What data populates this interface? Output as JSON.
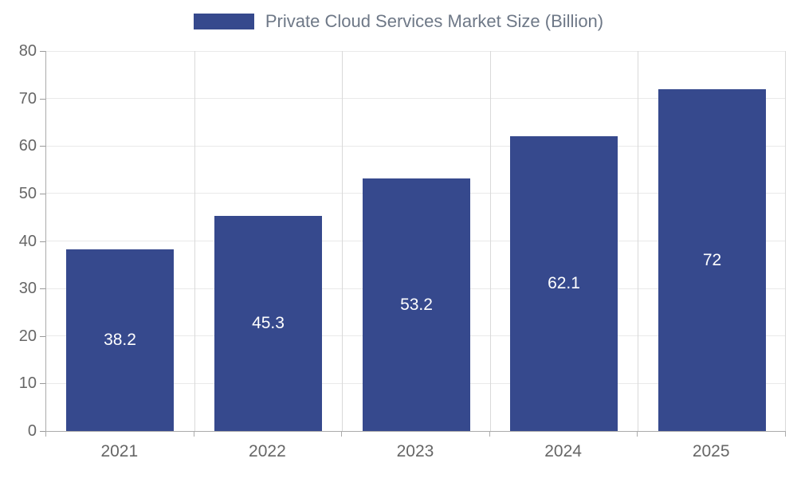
{
  "chart_data": {
    "type": "bar",
    "title": "Private Cloud Services Market Size (Billion)",
    "categories": [
      "2021",
      "2022",
      "2023",
      "2024",
      "2025"
    ],
    "values": [
      38.2,
      45.3,
      53.2,
      62.1,
      72
    ],
    "series": [
      {
        "name": "Private Cloud Services Market Size (Billion)",
        "values": [
          38.2,
          45.3,
          53.2,
          62.1,
          72
        ]
      }
    ],
    "xlabel": "",
    "ylabel": "",
    "ylim": [
      0,
      80
    ],
    "yticks": [
      0,
      10,
      20,
      30,
      40,
      50,
      60,
      70,
      80
    ],
    "grid": true,
    "legend_position": "top",
    "value_labels_position": "inside-center",
    "colors": {
      "bar": "#36498D",
      "value_label": "#FFFFFF",
      "axis_text": "#666666",
      "title_text": "#6E7887",
      "grid_h": "#E9E9E9",
      "grid_v": "#D9D9D9",
      "axis_line": "#ABABAB",
      "tick": "#999999",
      "background": "#FFFFFF"
    }
  }
}
